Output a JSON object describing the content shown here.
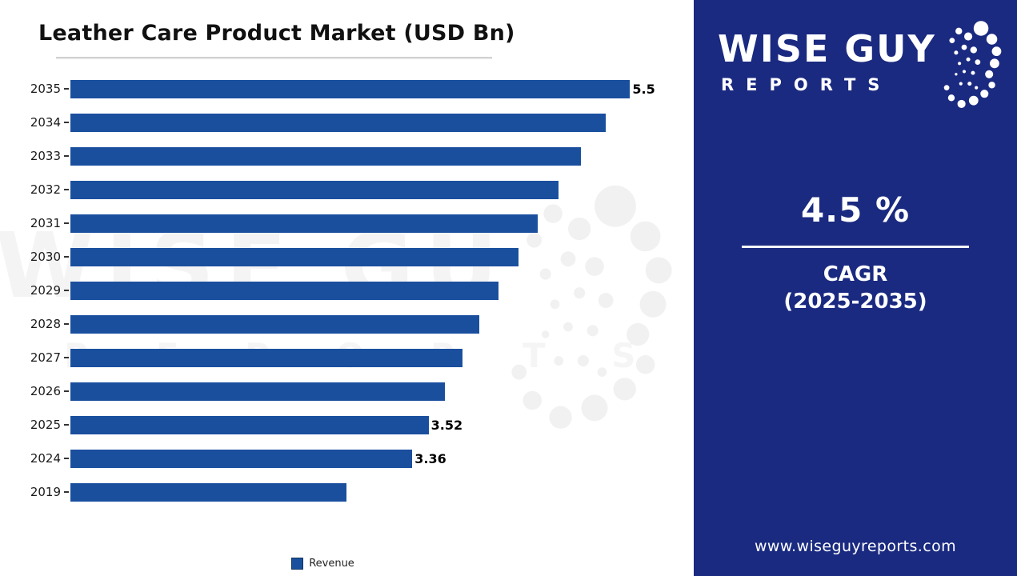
{
  "colors": {
    "bar": "#1a4f9e",
    "panel": "#1a2a80"
  },
  "chart_data": {
    "type": "bar",
    "orientation": "horizontal",
    "title": "Leather Care Product Market (USD Bn)",
    "categories": [
      "2035",
      "2034",
      "2033",
      "2032",
      "2031",
      "2030",
      "2029",
      "2028",
      "2027",
      "2026",
      "2025",
      "2024",
      "2019"
    ],
    "values": [
      5.5,
      5.26,
      5.02,
      4.8,
      4.59,
      4.4,
      4.21,
      4.02,
      3.85,
      3.68,
      3.52,
      3.36,
      2.71
    ],
    "value_labels": {
      "2035": "5.5",
      "2025": "3.52",
      "2024": "3.36"
    },
    "legend": [
      "Revenue"
    ],
    "legend_position": "bottom-center",
    "xlim": [
      0,
      6
    ],
    "grid": false,
    "ylabel": "",
    "xlabel": ""
  },
  "watermark": {
    "line1": "WISE GU",
    "line2": "R E P O R T S"
  },
  "right_panel": {
    "logo_line1": "WISE GUY",
    "logo_line2": "REPORTS",
    "cagr_value": "4.5 %",
    "cagr_label": "CAGR",
    "cagr_period": "(2025-2035)",
    "website": "www.wiseguyreports.com"
  }
}
